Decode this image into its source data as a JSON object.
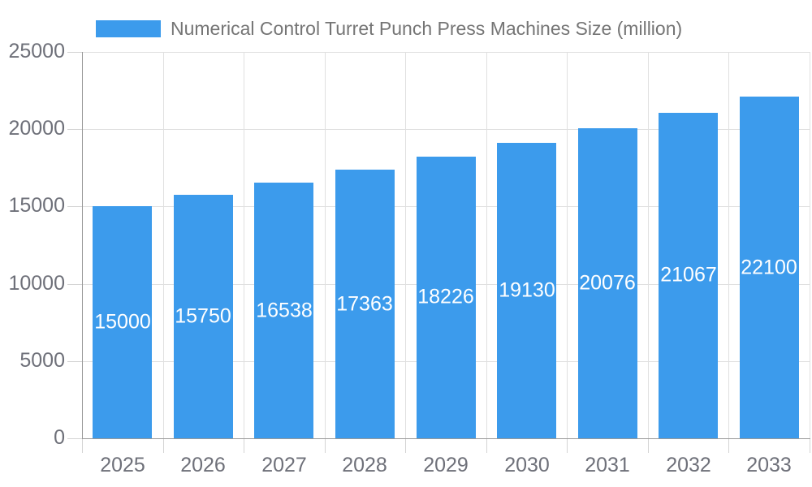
{
  "legend": {
    "label": "Numerical Control Turret Punch Press Machines Size (million)"
  },
  "colors": {
    "bar": "#3C9BEC",
    "grid": "#E0E0E0",
    "tick": "#D4D4D4",
    "axis": "#999999",
    "axis_label": "#6E7079",
    "legend_text": "#757575",
    "bar_label": "#FFFFFF",
    "background": "#FFFFFF"
  },
  "chart_data": {
    "type": "bar",
    "title": "",
    "series_name": "Numerical Control Turret Punch Press Machines Size (million)",
    "categories": [
      "2025",
      "2026",
      "2027",
      "2028",
      "2029",
      "2030",
      "2031",
      "2032",
      "2033"
    ],
    "values": [
      15000,
      15750,
      16538,
      17363,
      18226,
      19130,
      20076,
      21067,
      22100
    ],
    "xlabel": "",
    "ylabel": "",
    "ylim": [
      0,
      25000
    ],
    "yticks": [
      0,
      5000,
      10000,
      15000,
      20000,
      25000
    ],
    "grid": true,
    "grid_vertical": true,
    "legend_position": "top",
    "bar_label_position": "inside-center"
  }
}
